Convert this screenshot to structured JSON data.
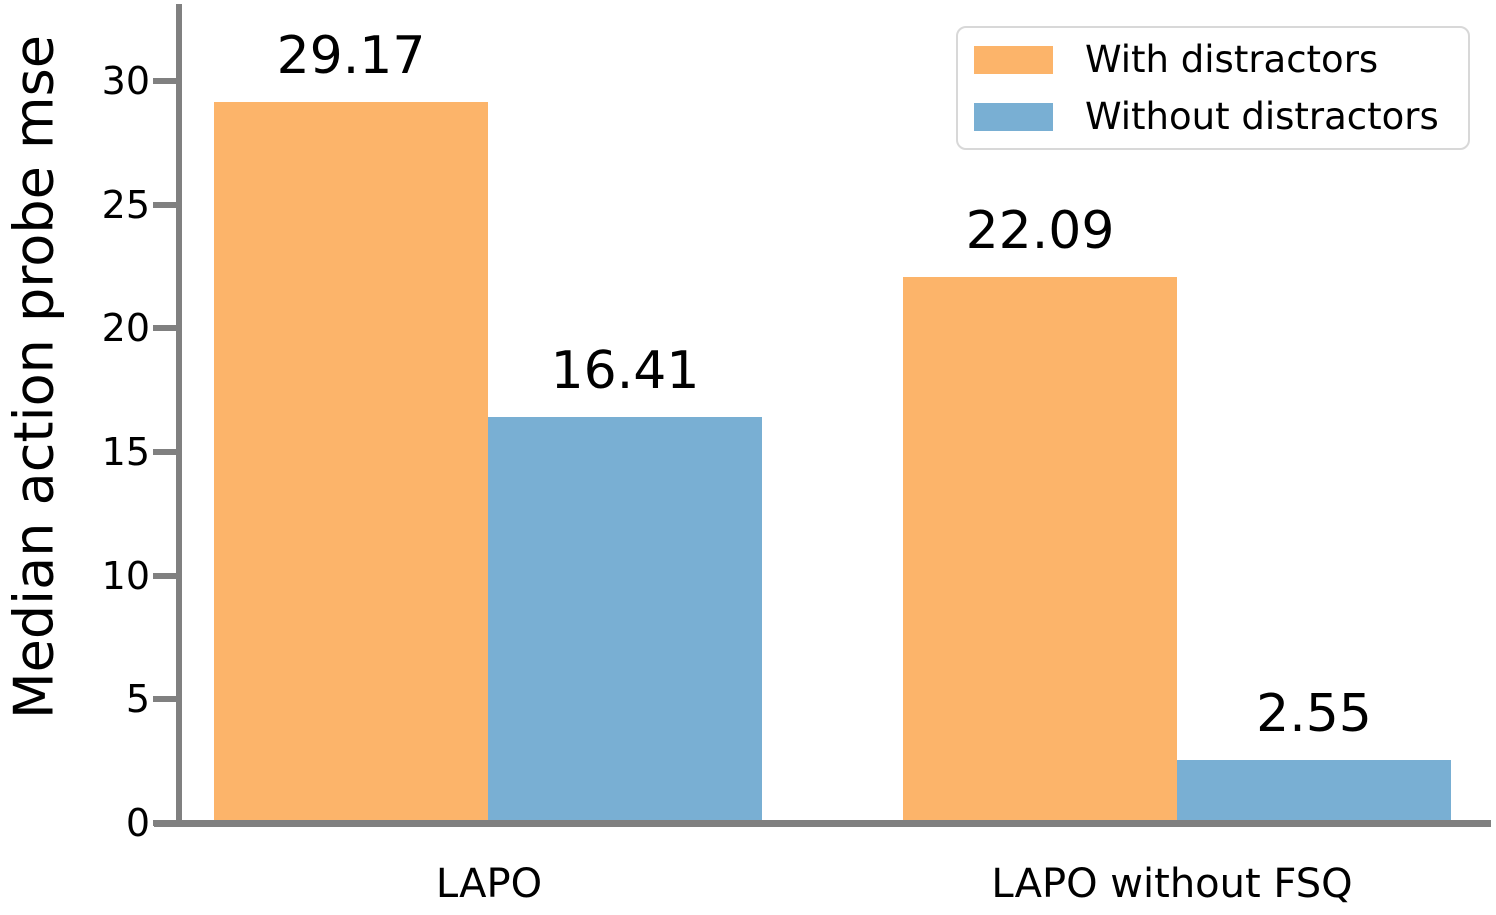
{
  "chart_data": {
    "type": "bar",
    "title": "",
    "ylabel": "Median action probe mse",
    "xlabel": "",
    "categories": [
      "LAPO",
      "LAPO without FSQ"
    ],
    "series": [
      {
        "name": "With distractors",
        "color": "#FCB46A",
        "values": [
          29.17,
          22.09
        ]
      },
      {
        "name": "Without distractors",
        "color": "#79AFD3",
        "values": [
          16.41,
          2.55
        ]
      }
    ],
    "bar_value_labels": [
      [
        "29.17",
        "22.09"
      ],
      [
        "16.41",
        "2.55"
      ]
    ],
    "yticks": [
      "0",
      "5",
      "10",
      "15",
      "20",
      "25",
      "30"
    ],
    "ylim": [
      0,
      33
    ],
    "grid": false,
    "legend": {
      "position": "upper right",
      "entries": [
        "With distractors",
        "Without distractors"
      ]
    },
    "axis_color": "#808080",
    "text_color": "#000000"
  }
}
